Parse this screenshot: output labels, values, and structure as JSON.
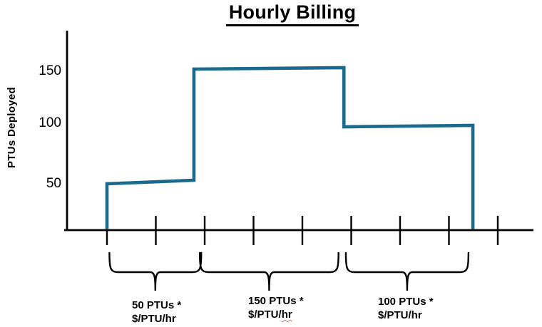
{
  "colors": {
    "line": "#1B6A8C",
    "axis": "#000000",
    "text": "#000000",
    "squiggle": "#E57373"
  },
  "chart_data": {
    "type": "line",
    "subtype": "step",
    "title": "Hourly Billing",
    "xlabel": "",
    "ylabel": "PTUs Deployed",
    "yticks": [
      50,
      100,
      150
    ],
    "ylim": [
      0,
      175
    ],
    "x_ticks": {
      "count": 9,
      "labels_visible": false
    },
    "grid": false,
    "legend": false,
    "series": [
      {
        "name": "PTUs Deployed",
        "steps": [
          {
            "level": 50,
            "t_start": 0,
            "t_end": 1.78
          },
          {
            "level": 150,
            "t_start": 1.78,
            "t_end": 4.85
          },
          {
            "level": 100,
            "t_start": 4.85,
            "t_end": 7.49
          }
        ]
      }
    ],
    "annotations": [
      {
        "type": "underbrace",
        "t_start": 0.05,
        "t_end": 1.93,
        "label": "50 PTUs * $/PTU/hr"
      },
      {
        "type": "underbrace",
        "t_start": 1.9,
        "t_end": 4.74,
        "label": "150 PTUs * $/PTU/hr"
      },
      {
        "type": "underbrace",
        "t_start": 4.89,
        "t_end": 7.4,
        "label": "100 PTUs * $/PTU/hr"
      }
    ]
  },
  "segments": [
    {
      "line1": "50 PTUs *",
      "line2_main": "$/PTU/hr",
      "line2_squiggle": ""
    },
    {
      "line1": "150 PTUs *",
      "line2_main": "$/PTU/",
      "line2_squiggle": "hr"
    },
    {
      "line1": "100 PTUs *",
      "line2_main": "$/PTU/hr",
      "line2_squiggle": ""
    }
  ]
}
